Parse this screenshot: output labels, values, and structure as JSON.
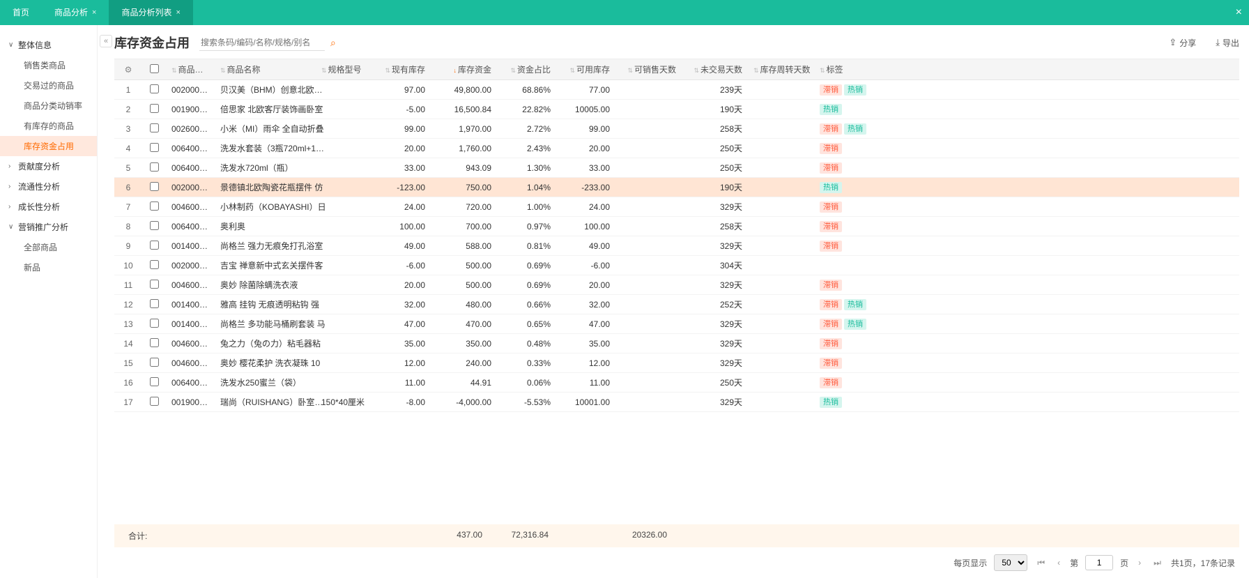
{
  "tabs": [
    {
      "label": "首页",
      "closable": false,
      "active": false
    },
    {
      "label": "商品分析",
      "closable": true,
      "active": false
    },
    {
      "label": "商品分析列表",
      "closable": true,
      "active": true
    }
  ],
  "sidebar": [
    {
      "type": "group",
      "label": "整体信息",
      "open": true
    },
    {
      "type": "item",
      "label": "销售类商品"
    },
    {
      "type": "item",
      "label": "交易过的商品"
    },
    {
      "type": "item",
      "label": "商品分类动销率"
    },
    {
      "type": "item",
      "label": "有库存的商品"
    },
    {
      "type": "item",
      "label": "库存资金占用",
      "active": true
    },
    {
      "type": "group",
      "label": "贡献度分析",
      "open": false
    },
    {
      "type": "group",
      "label": "流通性分析",
      "open": false
    },
    {
      "type": "group",
      "label": "成长性分析",
      "open": false
    },
    {
      "type": "group",
      "label": "营销推广分析",
      "open": true
    },
    {
      "type": "item",
      "label": "全部商品"
    },
    {
      "type": "item",
      "label": "新品"
    }
  ],
  "page_title": "库存资金占用",
  "search_placeholder": "搜索条码/编码/名称/规格/别名",
  "actions": {
    "share": "分享",
    "export": "导出"
  },
  "columns": {
    "code": "商品…",
    "name": "商品名称",
    "spec": "规格型号",
    "stock": "现有库存",
    "fund": "库存资金",
    "ratio": "资金占比",
    "avail": "可用库存",
    "sell_days": "可销售天数",
    "no_trade_days": "未交易天数",
    "turnover_days": "库存周转天数",
    "tags": "标签"
  },
  "tag_text": {
    "zhi": "滞销",
    "re": "热销"
  },
  "rows": [
    {
      "idx": 1,
      "code": "002000…",
      "name": "贝汉美（BHM）创意北欧…",
      "spec": "",
      "stock": "97.00",
      "fund": "49,800.00",
      "ratio": "68.86%",
      "avail": "77.00",
      "no_trade": "239天",
      "tags": [
        "zhi",
        "re"
      ]
    },
    {
      "idx": 2,
      "code": "001900…",
      "name": "倍思家 北欧客厅装饰画卧室",
      "spec": "",
      "stock": "-5.00",
      "fund": "16,500.84",
      "ratio": "22.82%",
      "avail": "10005.00",
      "no_trade": "190天",
      "tags": [
        "re"
      ]
    },
    {
      "idx": 3,
      "code": "002600…",
      "name": "小米（MI）雨伞 全自动折叠",
      "spec": "",
      "stock": "99.00",
      "fund": "1,970.00",
      "ratio": "2.72%",
      "avail": "99.00",
      "no_trade": "258天",
      "tags": [
        "zhi",
        "re"
      ]
    },
    {
      "idx": 4,
      "code": "006400…",
      "name": "洗发水套装（3瓶720ml+1…",
      "spec": "",
      "stock": "20.00",
      "fund": "1,760.00",
      "ratio": "2.43%",
      "avail": "20.00",
      "no_trade": "250天",
      "tags": [
        "zhi"
      ]
    },
    {
      "idx": 5,
      "code": "006400…",
      "name": "洗发水720ml（瓶）",
      "spec": "",
      "stock": "33.00",
      "fund": "943.09",
      "ratio": "1.30%",
      "avail": "33.00",
      "no_trade": "250天",
      "tags": [
        "zhi"
      ]
    },
    {
      "idx": 6,
      "hl": true,
      "code": "002000…",
      "name": "景德镇北欧陶瓷花瓶摆件 仿",
      "spec": "",
      "stock": "-123.00",
      "fund": "750.00",
      "ratio": "1.04%",
      "avail": "-233.00",
      "no_trade": "190天",
      "tags": [
        "re"
      ]
    },
    {
      "idx": 7,
      "code": "004600…",
      "name": "小林制药（KOBAYASHI）日",
      "spec": "",
      "stock": "24.00",
      "fund": "720.00",
      "ratio": "1.00%",
      "avail": "24.00",
      "no_trade": "329天",
      "tags": [
        "zhi"
      ]
    },
    {
      "idx": 8,
      "code": "006400…",
      "name": "奥利奥",
      "spec": "",
      "stock": "100.00",
      "fund": "700.00",
      "ratio": "0.97%",
      "avail": "100.00",
      "no_trade": "258天",
      "tags": [
        "zhi"
      ]
    },
    {
      "idx": 9,
      "code": "001400…",
      "name": "尚格兰 强力无痕免打孔浴室",
      "spec": "",
      "stock": "49.00",
      "fund": "588.00",
      "ratio": "0.81%",
      "avail": "49.00",
      "no_trade": "329天",
      "tags": [
        "zhi"
      ]
    },
    {
      "idx": 10,
      "code": "002000…",
      "name": "吉宝 禅意新中式玄关摆件客",
      "spec": "",
      "stock": "-6.00",
      "fund": "500.00",
      "ratio": "0.69%",
      "avail": "-6.00",
      "no_trade": "304天",
      "tags": []
    },
    {
      "idx": 11,
      "code": "004600…",
      "name": "奥妙 除菌除螨洗衣液",
      "spec": "",
      "stock": "20.00",
      "fund": "500.00",
      "ratio": "0.69%",
      "avail": "20.00",
      "no_trade": "329天",
      "tags": [
        "zhi"
      ]
    },
    {
      "idx": 12,
      "code": "001400…",
      "name": "雅高 挂钩 无痕透明粘钩 强",
      "spec": "",
      "stock": "32.00",
      "fund": "480.00",
      "ratio": "0.66%",
      "avail": "32.00",
      "no_trade": "252天",
      "tags": [
        "zhi",
        "re"
      ]
    },
    {
      "idx": 13,
      "code": "001400…",
      "name": "尚格兰 多功能马桶刷套装 马",
      "spec": "",
      "stock": "47.00",
      "fund": "470.00",
      "ratio": "0.65%",
      "avail": "47.00",
      "no_trade": "329天",
      "tags": [
        "zhi",
        "re"
      ]
    },
    {
      "idx": 14,
      "code": "004600…",
      "name": "兔之力（兔の力）粘毛器粘",
      "spec": "",
      "stock": "35.00",
      "fund": "350.00",
      "ratio": "0.48%",
      "avail": "35.00",
      "no_trade": "329天",
      "tags": [
        "zhi"
      ]
    },
    {
      "idx": 15,
      "code": "004600…",
      "name": "奥妙 樱花柔护 洗衣凝珠 10",
      "spec": "",
      "stock": "12.00",
      "fund": "240.00",
      "ratio": "0.33%",
      "avail": "12.00",
      "no_trade": "329天",
      "tags": [
        "zhi"
      ]
    },
    {
      "idx": 16,
      "code": "006400…",
      "name": "洗发水250蜜兰（袋）",
      "spec": "",
      "stock": "11.00",
      "fund": "44.91",
      "ratio": "0.06%",
      "avail": "11.00",
      "no_trade": "250天",
      "tags": [
        "zhi"
      ]
    },
    {
      "idx": 17,
      "code": "001900…",
      "name": "瑞尚（RUISHANG）卧室…",
      "spec": "150*40厘米",
      "stock": "-8.00",
      "fund": "-4,000.00",
      "ratio": "-5.53%",
      "avail": "10001.00",
      "no_trade": "329天",
      "tags": [
        "re"
      ]
    }
  ],
  "summary": {
    "label": "合计:",
    "stock": "437.00",
    "fund": "72,316.84",
    "avail": "20326.00"
  },
  "pager": {
    "perpage_label": "每页显示",
    "perpage_value": "50",
    "page_prefix": "第",
    "page_value": "1",
    "page_suffix": "页",
    "total": "共1页，17条记录"
  }
}
